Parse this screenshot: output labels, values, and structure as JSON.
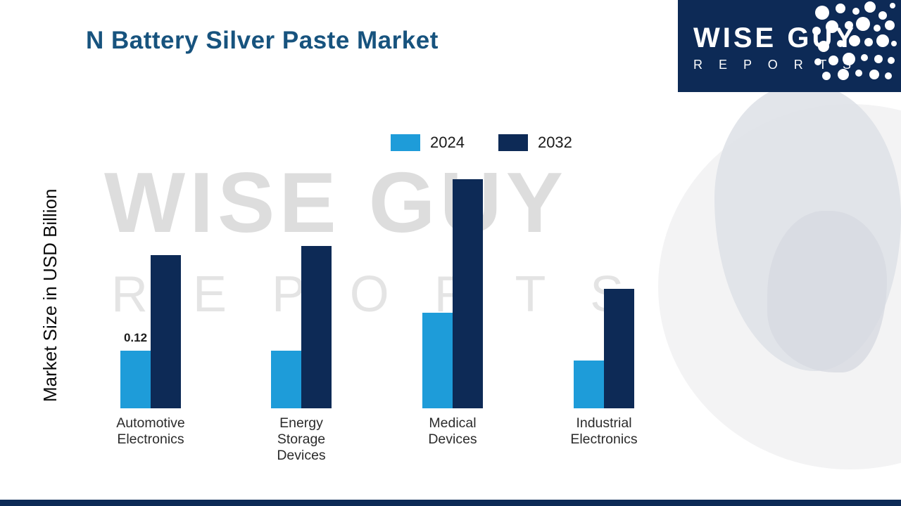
{
  "page": {
    "title": "N Battery Silver Paste Market",
    "title_color": "#17537e",
    "bottom_bar_color": "#0d2a56"
  },
  "brand": {
    "name_line1": "WISE GUY",
    "name_line2": "R E P O R T S",
    "bg_color": "#0d2a56"
  },
  "watermark": {
    "line1": "WISE GUY",
    "line2": "R E P O R T S"
  },
  "chart_data": {
    "type": "bar",
    "title": "N Battery Silver Paste Market",
    "xlabel": "",
    "ylabel": "Market Size in USD Billion",
    "categories": [
      "Automotive Electronics",
      "Energy Storage Devices",
      "Medical Devices",
      "Industrial Electronics"
    ],
    "series": [
      {
        "name": "2024",
        "color": "#1e9cd9",
        "values": [
          0.12,
          0.12,
          0.2,
          0.1
        ]
      },
      {
        "name": "2032",
        "color": "#0d2a56",
        "values": [
          0.32,
          0.34,
          0.48,
          0.25
        ]
      }
    ],
    "annotations": [
      {
        "category_index": 0,
        "series_index": 0,
        "text": "0.12"
      }
    ],
    "legend_position": "top",
    "grid": false,
    "ylim": [
      0,
      0.5
    ]
  }
}
